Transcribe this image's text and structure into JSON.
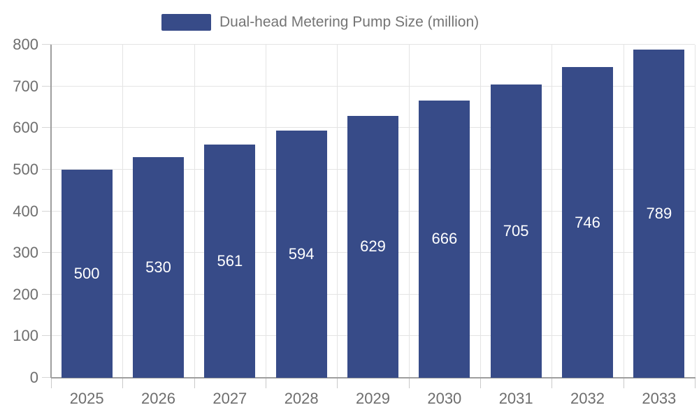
{
  "chart_data": {
    "type": "bar",
    "title": "",
    "legend_position": "top",
    "categories": [
      "2025",
      "2026",
      "2027",
      "2028",
      "2029",
      "2030",
      "2031",
      "2032",
      "2033"
    ],
    "series": [
      {
        "name": "Dual-head Metering Pump Size (million)",
        "values": [
          500,
          530,
          561,
          594,
          629,
          666,
          705,
          746,
          789
        ],
        "color": "#374B88"
      }
    ],
    "xlabel": "",
    "ylabel": "",
    "ylim": [
      0,
      800
    ],
    "yticks": [
      0,
      100,
      200,
      300,
      400,
      500,
      600,
      700,
      800
    ],
    "grid": true,
    "value_labels": "inside-center",
    "value_label_color": "#ffffff",
    "axis_label_color": "#6e6e6e",
    "legend_text_color": "#747474",
    "grid_color": "#e4e4e4",
    "tick_color": "#c9c9c9",
    "axis_line_color": "#9e9e9e"
  }
}
